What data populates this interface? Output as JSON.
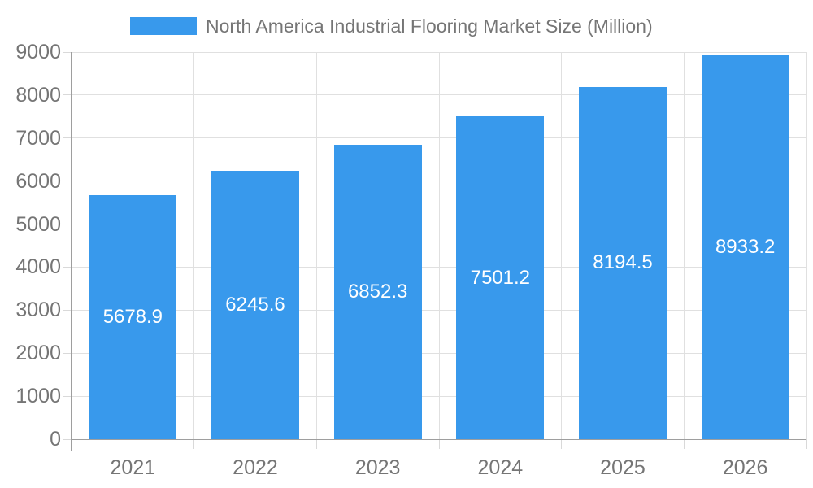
{
  "chart_data": {
    "type": "bar",
    "series_name": "North America Industrial Flooring Market Size (Million)",
    "categories": [
      "2021",
      "2022",
      "2023",
      "2024",
      "2025",
      "2026"
    ],
    "values": [
      5678.9,
      6245.6,
      6852.3,
      7501.2,
      8194.5,
      8933.2
    ],
    "value_labels": [
      "5678.9",
      "6245.6",
      "6852.3",
      "7501.2",
      "8194.5",
      "8933.2"
    ],
    "title": "",
    "xlabel": "",
    "ylabel": "",
    "ylim": [
      0,
      9000
    ],
    "ytick_step": 1000,
    "grid": true,
    "legend_position": "top",
    "colors": {
      "bar": "#3899EC",
      "value_label": "#ffffff",
      "axis_label": "#757575",
      "gridline": "#e0e0e0",
      "axis_line": "#9e9e9e",
      "tick": "#d9d9d9"
    }
  }
}
